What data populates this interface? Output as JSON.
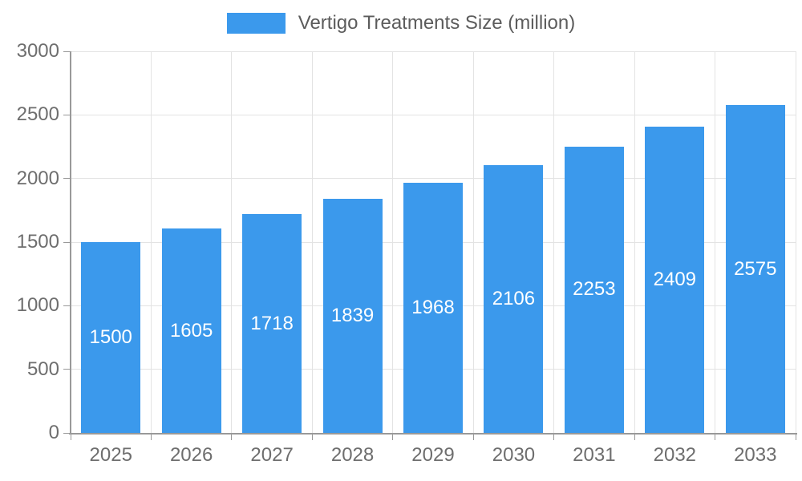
{
  "legend": {
    "label": "Vertigo Treatments Size (million)"
  },
  "chart_data": {
    "type": "bar",
    "title": "Vertigo Treatments Size (million)",
    "series_name": "Vertigo Treatments Size (million)",
    "categories": [
      "2025",
      "2026",
      "2027",
      "2028",
      "2029",
      "2030",
      "2031",
      "2032",
      "2033"
    ],
    "values": [
      1500,
      1605,
      1718,
      1839,
      1968,
      2106,
      2253,
      2409,
      2575
    ],
    "xlabel": "",
    "ylabel": "",
    "ylim": [
      0,
      3000
    ],
    "yticks": [
      0,
      500,
      1000,
      1500,
      2000,
      2500,
      3000
    ],
    "grid": true,
    "legend_position": "top-center",
    "bar_labels_position": "inside-center"
  },
  "colors": {
    "bar": "#3B99EC",
    "bar_label": "#FFFFFF",
    "axis": "#999999",
    "grid": "#E3E3E3",
    "tick_label": "#6E6E6E",
    "legend_text": "#5C5C5C",
    "background": "#FFFFFF"
  }
}
